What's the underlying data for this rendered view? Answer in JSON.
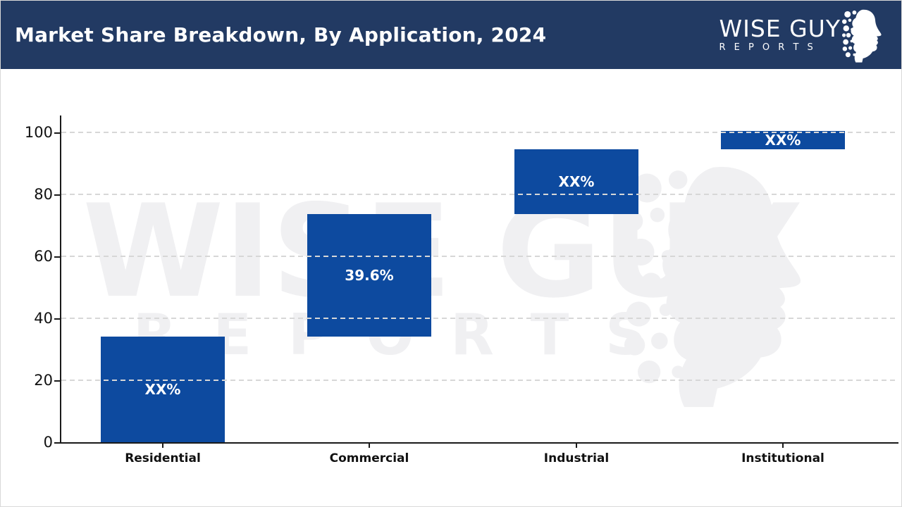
{
  "header": {
    "title": "Market Share Breakdown, By Application, 2024",
    "logo": {
      "line1": "WISE GUY",
      "line2": "R E P O R T S"
    }
  },
  "watermark": {
    "line1": "WISE GUY",
    "line2": "R E P O R T S"
  },
  "colors": {
    "header_bg": "#223a63",
    "bar": "#0d4a9f",
    "grid": "#d7d7d7",
    "axis": "#1a1a1a",
    "watermark": "#f0f0f2"
  },
  "chart_data": {
    "type": "bar",
    "subtype": "floating-waterfall",
    "title": "Market Share Breakdown, By Application, 2024",
    "unit": "percent",
    "grid": "dashed-horizontal",
    "legend": "none",
    "xlabel": "",
    "ylabel": "",
    "ylim": [
      0,
      105
    ],
    "yticks": [
      0,
      20,
      40,
      60,
      80,
      100
    ],
    "categories": [
      "Residential",
      "Commercial",
      "Industrial",
      "Institutional"
    ],
    "segments": [
      {
        "category": "Residential",
        "start": 0,
        "end": 34.1,
        "value": 34.1,
        "value_label": "XX%"
      },
      {
        "category": "Commercial",
        "start": 34.1,
        "end": 73.7,
        "value": 39.6,
        "value_label": "39.6%"
      },
      {
        "category": "Industrial",
        "start": 73.7,
        "end": 94.5,
        "value": 20.8,
        "value_label": "XX%"
      },
      {
        "category": "Institutional",
        "start": 94.5,
        "end": 100.4,
        "value": 5.9,
        "value_label": "XX%"
      }
    ],
    "bar_color": "#0d4a9f"
  }
}
